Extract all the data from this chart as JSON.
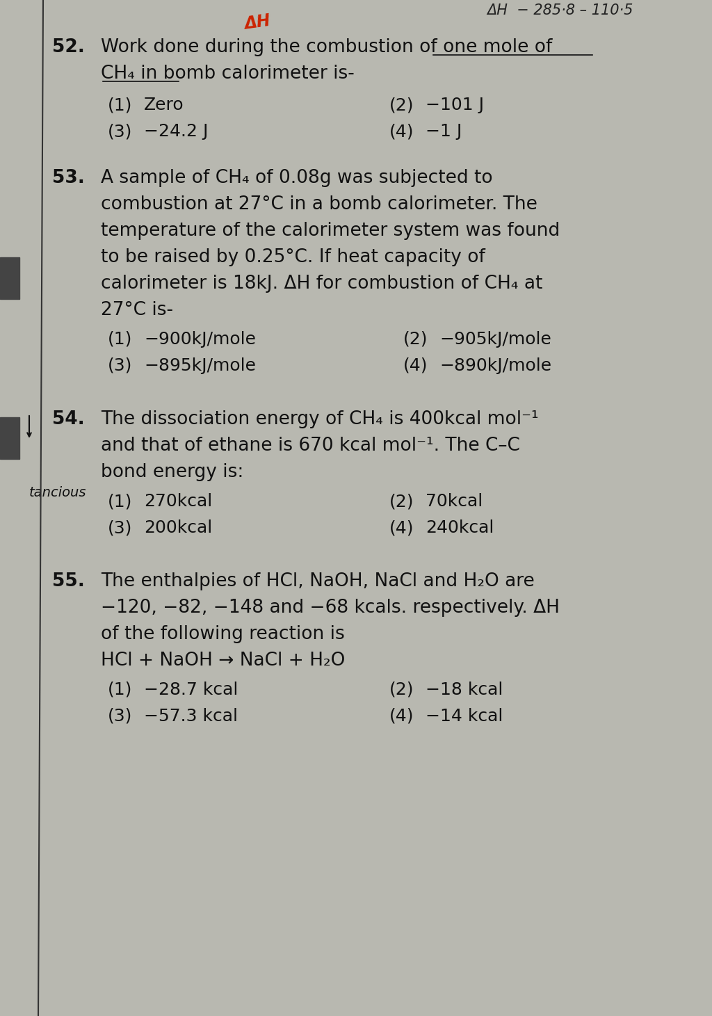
{
  "bg_color": "#b8b8b0",
  "text_color": "#111111",
  "left_bar_color": "#555555",
  "questions": [
    {
      "number": "52.",
      "lines": [
        "Work done during the combustion of one mole of",
        "CH₄ in bomb calorimeter is-"
      ],
      "options": [
        {
          "num": "(1)",
          "text": "Zero"
        },
        {
          "num": "(2)",
          "text": "−101 J"
        },
        {
          "num": "(3)",
          "text": "−24.2 J"
        },
        {
          "num": "(4)",
          "text": "−1 J"
        }
      ]
    },
    {
      "number": "53.",
      "lines": [
        "A sample of CH₄ of 0.08g was subjected to",
        "combustion at 27°C in a bomb calorimeter. The",
        "temperature of the calorimeter system was found",
        "to be raised by 0.25°C. If heat capacity of",
        "calorimeter is 18kJ. ΔH for combustion of CH₄ at",
        "27°C is-"
      ],
      "options": [
        {
          "num": "(1)",
          "text": "−900kJ/mole"
        },
        {
          "num": "(2)",
          "text": "−905kJ/mole"
        },
        {
          "num": "(3)",
          "text": "−895kJ/mole"
        },
        {
          "num": "(4)",
          "text": "−890kJ/mole"
        }
      ]
    },
    {
      "number": "54.",
      "lines": [
        "The dissociation energy of CH₄ is 400kcal mol⁻¹",
        "and that of ethane is 670 kcal mol⁻¹. The C–C",
        "bond energy is:"
      ],
      "options": [
        {
          "num": "(1)",
          "text": "270kcal"
        },
        {
          "num": "(2)",
          "text": "70kcal"
        },
        {
          "num": "(3)",
          "text": "200kcal"
        },
        {
          "num": "(4)",
          "text": "240kcal"
        }
      ]
    },
    {
      "number": "55.",
      "lines": [
        "The enthalpies of HCl, NaOH, NaCl and H₂O are",
        "−120, −82, −148 and −68 kcals. respectively. ΔH",
        "of the following reaction is",
        "HCl + NaOH → NaCl + H₂O"
      ],
      "options": [
        {
          "num": "(1)",
          "text": "−28.7 kcal"
        },
        {
          "num": "(2)",
          "text": "−18 kcal"
        },
        {
          "num": "(3)",
          "text": "−57.3 kcal"
        },
        {
          "num": "(4)",
          "text": "−14 kcal"
        }
      ]
    }
  ],
  "top_text": "ΔH  − 285·8 – 110·5",
  "dh_annotation": "ΔH",
  "tancious_text": "tancious",
  "figsize": [
    10.24,
    14.61
  ],
  "dpi": 100
}
